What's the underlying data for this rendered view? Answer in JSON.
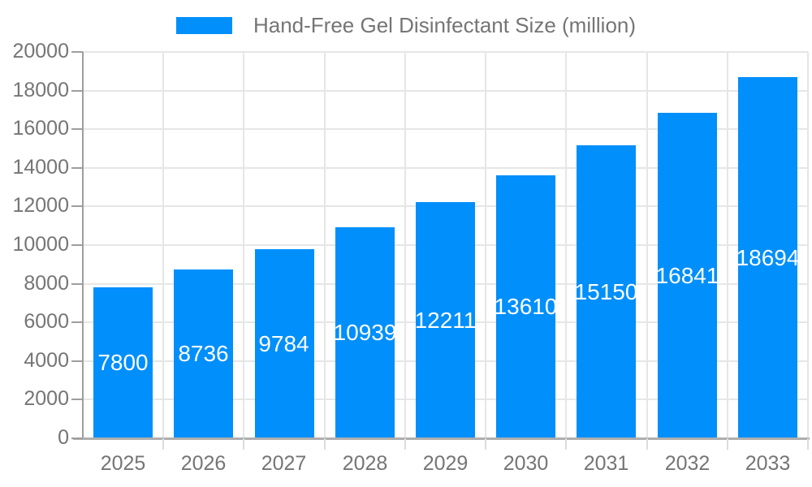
{
  "legend": {
    "position": "top",
    "swatch_color": "#008ffb"
  },
  "chart_data": {
    "type": "bar",
    "title": "Hand-Free Gel Disinfectant Size (million)",
    "xlabel": "",
    "ylabel": "",
    "categories": [
      "2025",
      "2026",
      "2027",
      "2028",
      "2029",
      "2030",
      "2031",
      "2032",
      "2033"
    ],
    "values": [
      7800,
      8736,
      9784,
      10939,
      12211,
      13610,
      15150,
      16841,
      18694
    ],
    "value_labels": [
      "7800",
      "8736",
      "9784",
      "10939",
      "12211",
      "13610",
      "15150",
      "16841",
      "18694"
    ],
    "ylim": [
      0,
      20000
    ],
    "ytick_interval": 2000,
    "ytick_labels": [
      "0",
      "2000",
      "4000",
      "6000",
      "8000",
      "10000",
      "12000",
      "14000",
      "16000",
      "18000",
      "20000"
    ],
    "grid": true,
    "legend_position": "top",
    "colors": {
      "bar": "#008ffb",
      "value_label": "#ffffff",
      "axis_label": "#757575",
      "grid_line": "#e6e6e6",
      "axis_line": "#9e9e9e",
      "baseline": "#aeaeae",
      "x_tick": "#dcdcdc"
    }
  }
}
